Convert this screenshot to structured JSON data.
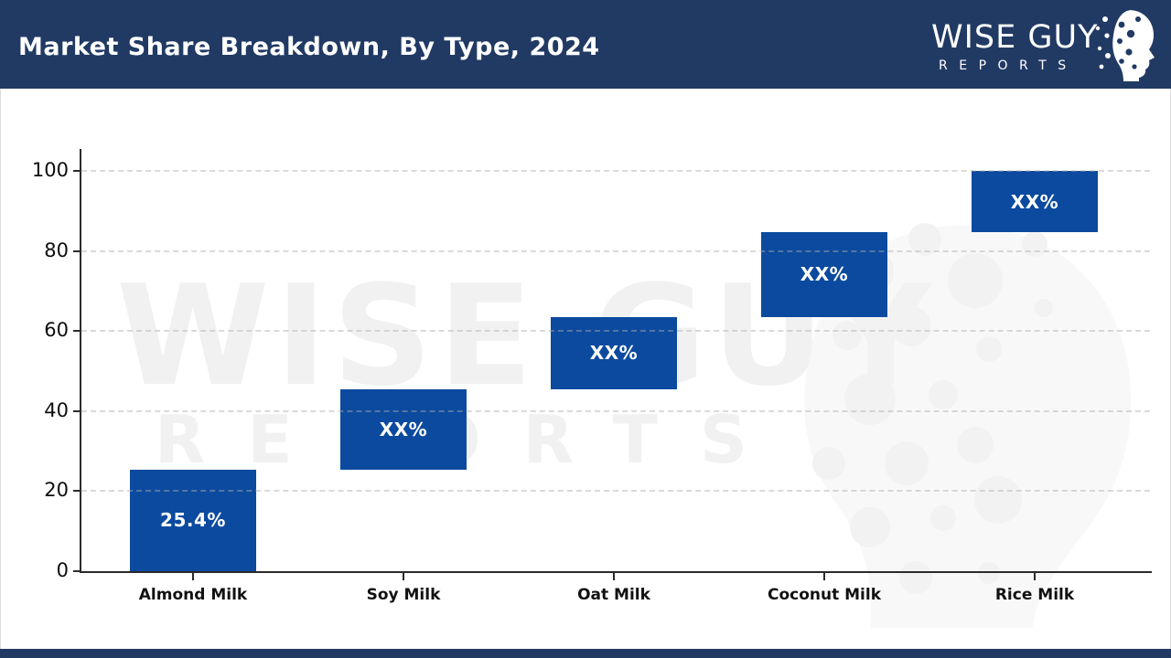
{
  "header": {
    "title": "Market Share Breakdown, By Type, 2024",
    "bg_color": "#213a64",
    "title_color": "#ffffff"
  },
  "brand": {
    "line1": "WISE GUY",
    "line2": "REPORTS"
  },
  "watermark": {
    "line1": "WISE GUY",
    "line2": "REPORTS"
  },
  "chart_data": {
    "type": "bar",
    "subtype": "waterfall",
    "title": "Market Share Breakdown, By Type, 2024",
    "categories": [
      "Almond Milk",
      "Soy Milk",
      "Oat Milk",
      "Coconut Milk",
      "Rice Milk"
    ],
    "segments": [
      {
        "category": "Almond Milk",
        "start": 0,
        "end": 25.4,
        "label": "25.4%"
      },
      {
        "category": "Soy Milk",
        "start": 25.4,
        "end": 45.5,
        "label": "XX%"
      },
      {
        "category": "Oat Milk",
        "start": 45.5,
        "end": 63.5,
        "label": "XX%"
      },
      {
        "category": "Coconut Milk",
        "start": 63.5,
        "end": 84.7,
        "label": "XX%"
      },
      {
        "category": "Rice Milk",
        "start": 84.7,
        "end": 100,
        "label": "XX%"
      }
    ],
    "xlabel": "",
    "ylabel": "",
    "ylim": [
      0,
      105
    ],
    "yticks": [
      0,
      20,
      40,
      60,
      80,
      100
    ],
    "grid": "horizontal dashed",
    "legend": "none",
    "bar_color": "#0b4a9f",
    "bar_label_color": "#ffffff",
    "axis_color": "#2a2a2a"
  },
  "footer": {
    "bg_color": "#213a64"
  }
}
